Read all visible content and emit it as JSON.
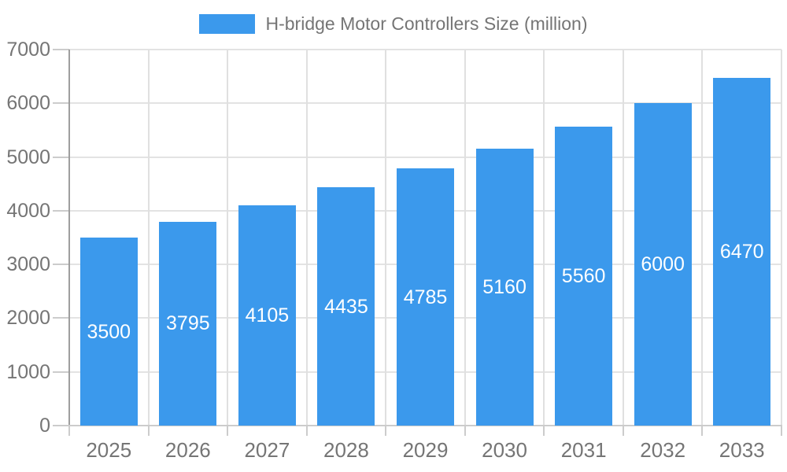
{
  "chart_data": {
    "type": "bar",
    "title": "H-bridge Motor Controllers Size (million)",
    "legend_position": "top",
    "categories": [
      "2025",
      "2026",
      "2027",
      "2028",
      "2029",
      "2030",
      "2031",
      "2032",
      "2033"
    ],
    "values": [
      3500,
      3795,
      4105,
      4435,
      4785,
      5160,
      5560,
      6000,
      6470
    ],
    "xlabel": "",
    "ylabel": "",
    "ylim": [
      0,
      7000
    ],
    "yticks": [
      0,
      1000,
      2000,
      3000,
      4000,
      5000,
      6000,
      7000
    ],
    "grid": true,
    "colors": {
      "bar": "#3b99ec",
      "bar_value_label": "#ffffff",
      "axis_text": "#757575",
      "gridline": "#e3e3e3",
      "y_axis_line": "#9e9e9e",
      "tick": "#cccccc"
    }
  }
}
